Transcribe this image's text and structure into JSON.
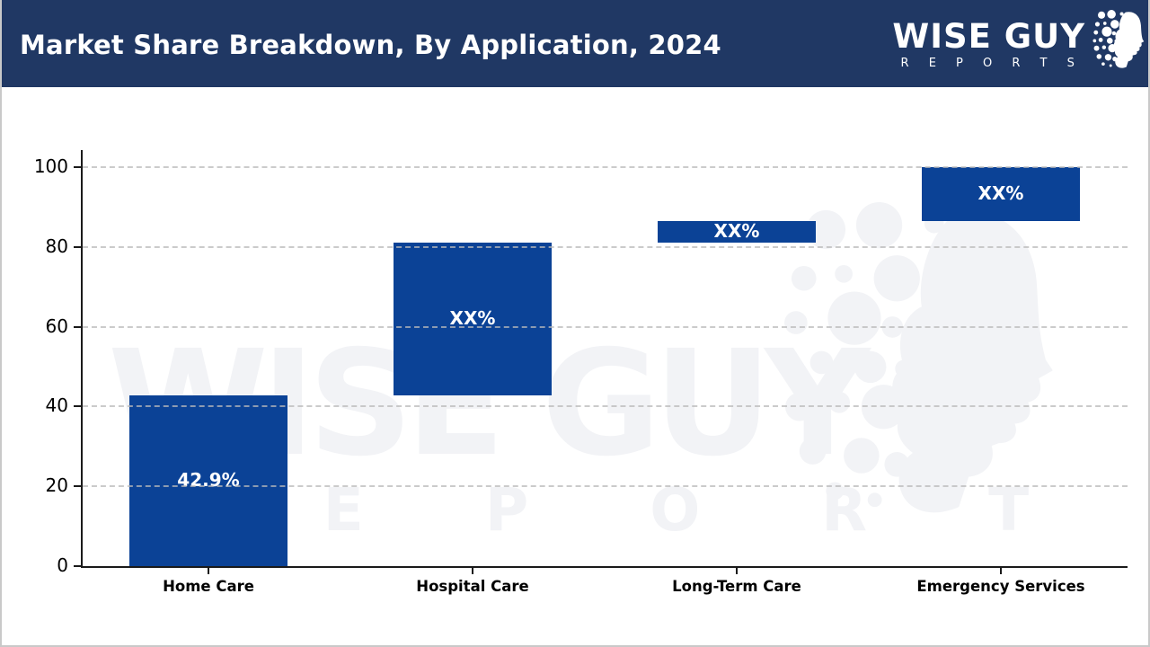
{
  "header": {
    "title": "Market Share Breakdown, By Application, 2024",
    "logo": {
      "line1": "WISE GUY",
      "line2": "R E P O R T S"
    }
  },
  "watermark": {
    "line1": "WISE GUY",
    "line2": "R E P O R T S"
  },
  "colors": {
    "header_bg": "#203864",
    "bar": "#0b4296",
    "axis": "#1a1a1a",
    "grid": "#bdbdbd",
    "tick_text": "#000000",
    "bar_label_text": "#ffffff",
    "watermark": "#f2f3f6",
    "page_border": "#c9c9c9"
  },
  "chart_data": {
    "type": "bar",
    "subtype": "waterfall",
    "title": "Market Share Breakdown, By Application, 2024",
    "categories": [
      "Home Care",
      "Hospital Care",
      "Long-Term Care",
      "Emergency Services"
    ],
    "series": [
      {
        "name": "Market Share",
        "segments": [
          {
            "category": "Home Care",
            "start": 0,
            "end": 42.9,
            "label": "42.9%"
          },
          {
            "category": "Hospital Care",
            "start": 42.9,
            "end": 81,
            "label": "XX%"
          },
          {
            "category": "Long-Term Care",
            "start": 81,
            "end": 86.5,
            "label": "XX%"
          },
          {
            "category": "Emergency Services",
            "start": 86.5,
            "end": 100,
            "label": "XX%"
          }
        ]
      }
    ],
    "xlabel": "",
    "ylabel": "",
    "ylim": [
      0,
      100
    ],
    "yticks": [
      0,
      20,
      40,
      60,
      80,
      100
    ],
    "grid": "horizontal-dashed",
    "legend": "none"
  }
}
